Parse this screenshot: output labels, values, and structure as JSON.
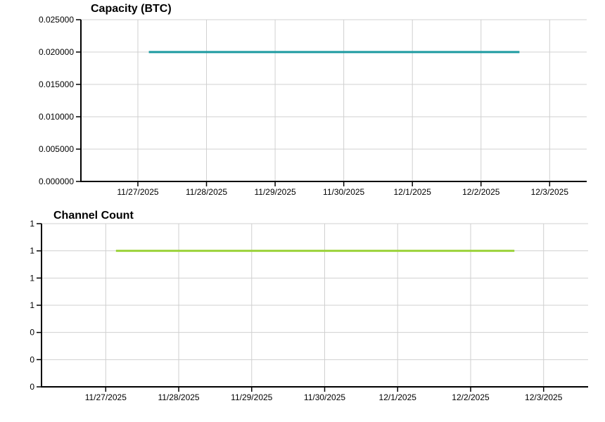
{
  "page": {
    "background": "#ffffff",
    "text_color": "#000000"
  },
  "chart_data": [
    {
      "type": "line",
      "title": "Capacity (BTC)",
      "xlabel": "",
      "ylabel": "",
      "legend": "none",
      "grid": true,
      "axis_color": "#000000",
      "grid_color": "#d0d0d0",
      "x_unit": "days after 11/27/2025 00:00",
      "x_domain": [
        -0.83,
        6.54
      ],
      "y_domain": [
        0,
        0.025
      ],
      "x_ticks": [
        {
          "v": 0,
          "label": "11/27/2025"
        },
        {
          "v": 1,
          "label": "11/28/2025"
        },
        {
          "v": 2,
          "label": "11/29/2025"
        },
        {
          "v": 3,
          "label": "11/30/2025"
        },
        {
          "v": 4,
          "label": "12/1/2025"
        },
        {
          "v": 5,
          "label": "12/2/2025"
        },
        {
          "v": 6,
          "label": "12/3/2025"
        }
      ],
      "y_ticks": [
        {
          "v": 0.0,
          "label": "0.000000"
        },
        {
          "v": 0.005,
          "label": "0.005000"
        },
        {
          "v": 0.01,
          "label": "0.010000"
        },
        {
          "v": 0.015,
          "label": "0.015000"
        },
        {
          "v": 0.02,
          "label": "0.020000"
        },
        {
          "v": 0.025,
          "label": "0.025000"
        }
      ],
      "series": [
        {
          "name": "Capacity BTC",
          "color": "#1b9aa0",
          "stroke_width": 3,
          "constant_value": 0.02,
          "points": [
            [
              0.16,
              0.02
            ],
            [
              5.56,
              0.02
            ]
          ]
        }
      ]
    },
    {
      "type": "line",
      "title": "Channel Count",
      "xlabel": "",
      "ylabel": "",
      "legend": "none",
      "grid": true,
      "axis_color": "#000000",
      "grid_color": "#d0d0d0",
      "x_unit": "days after 11/27/2025 00:00",
      "x_domain": [
        -0.88,
        6.61
      ],
      "y_domain": [
        0,
        1.2
      ],
      "x_ticks": [
        {
          "v": 0,
          "label": "11/27/2025"
        },
        {
          "v": 1,
          "label": "11/28/2025"
        },
        {
          "v": 2,
          "label": "11/29/2025"
        },
        {
          "v": 3,
          "label": "11/30/2025"
        },
        {
          "v": 4,
          "label": "12/1/2025"
        },
        {
          "v": 5,
          "label": "12/2/2025"
        },
        {
          "v": 6,
          "label": "12/3/2025"
        }
      ],
      "y_ticks": [
        {
          "v": 0.0,
          "label": "0"
        },
        {
          "v": 0.2,
          "label": "0"
        },
        {
          "v": 0.4,
          "label": "0"
        },
        {
          "v": 0.6,
          "label": "1"
        },
        {
          "v": 0.8,
          "label": "1"
        },
        {
          "v": 1.0,
          "label": "1"
        },
        {
          "v": 1.2,
          "label": "1"
        }
      ],
      "series": [
        {
          "name": "Channel Count",
          "color": "#9bd239",
          "stroke_width": 3,
          "constant_value": 1,
          "points": [
            [
              0.14,
              1
            ],
            [
              5.6,
              1
            ]
          ]
        }
      ]
    }
  ]
}
